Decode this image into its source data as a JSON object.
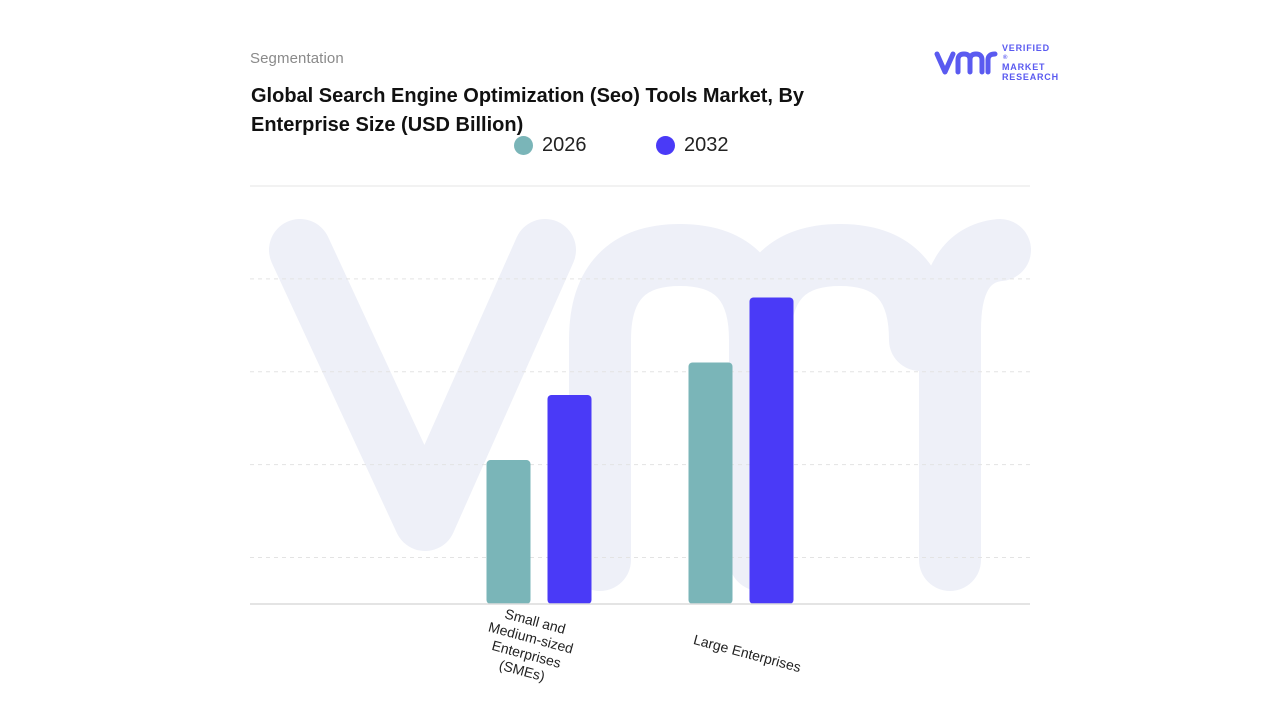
{
  "header": {
    "kicker": "Segmentation",
    "title": "Global Search Engine Optimization (Seo) Tools Market, By Enterprise Size (USD Billion)"
  },
  "logo": {
    "mark": "vmr",
    "lines": [
      "VERIFIED",
      "MARKET",
      "RESEARCH"
    ],
    "registered": "®",
    "color": "#5a5af0"
  },
  "chart_data": {
    "type": "bar",
    "title": "Global Search Engine Optimization (Seo) Tools Market, By Enterprise Size (USD Billion)",
    "xlabel": "",
    "ylabel": "",
    "categories": [
      "Small and Medium-sized Enterprises (SMEs)",
      "Large Enterprises"
    ],
    "series": [
      {
        "name": "2026",
        "color": "#7ab5b8",
        "values": [
          1.55,
          2.6
        ]
      },
      {
        "name": "2032",
        "color": "#4a3af7",
        "values": [
          2.25,
          3.3
        ]
      }
    ],
    "ylim": [
      0,
      4.5
    ],
    "grid": true,
    "legend_position": "top-center",
    "axis_ticks_shown": false
  }
}
